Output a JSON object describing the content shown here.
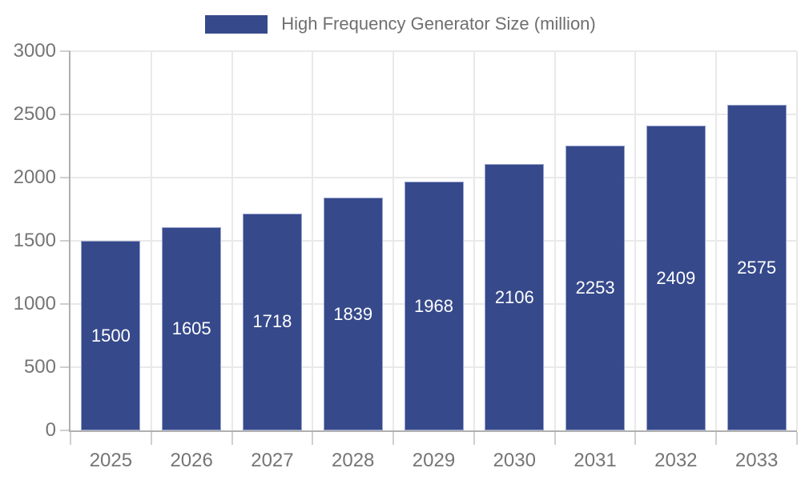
{
  "chart_data": {
    "type": "bar",
    "title": "High Frequency Generator Size (million)",
    "categories": [
      "2025",
      "2026",
      "2027",
      "2028",
      "2029",
      "2030",
      "2031",
      "2032",
      "2033"
    ],
    "values": [
      1500,
      1605,
      1718,
      1839,
      1968,
      2106,
      2253,
      2409,
      2575
    ],
    "xlabel": "",
    "ylabel": "",
    "ylim": [
      0,
      3000
    ],
    "yticks": [
      0,
      500,
      1000,
      1500,
      2000,
      2500,
      3000
    ],
    "grid": "both",
    "legend_position": "top",
    "bar_labels_position": "center",
    "colors": {
      "bar_fill": "#36498b",
      "bar_stroke": "#9aa4cd",
      "bar_label_text": "#ffffff",
      "axis_line": "#b0b0b0",
      "gridline": "#e9e9e9",
      "tick": "#cfcfcf",
      "axis_text": "#757575",
      "legend_text": "#6f6f6f",
      "background": "#ffffff"
    }
  }
}
